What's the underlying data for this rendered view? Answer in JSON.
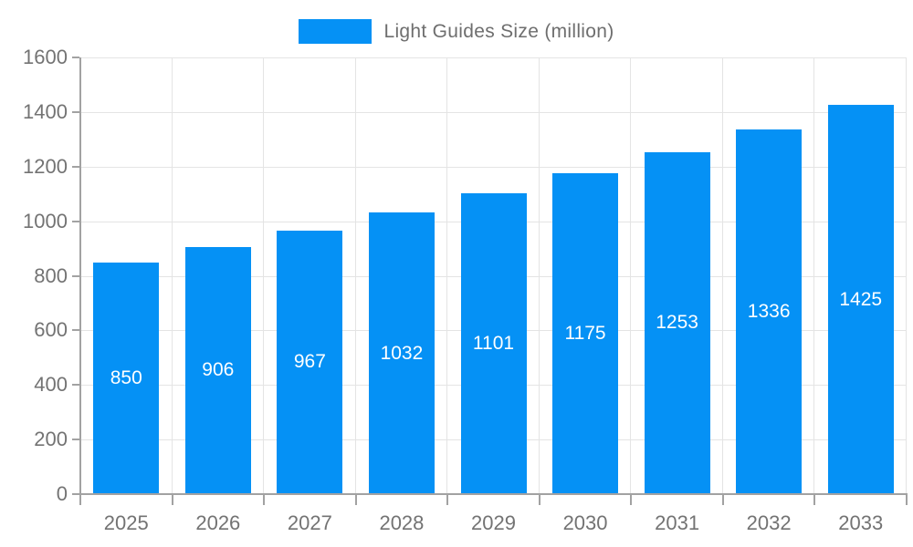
{
  "chart_data": {
    "type": "bar",
    "title": "",
    "series_name": "Light Guides Size (million)",
    "categories": [
      "2025",
      "2026",
      "2027",
      "2028",
      "2029",
      "2030",
      "2031",
      "2032",
      "2033"
    ],
    "values": [
      850,
      906,
      967,
      1032,
      1101,
      1175,
      1253,
      1336,
      1425
    ],
    "value_labels": [
      "850",
      "906",
      "967",
      "1032",
      "1101",
      "1175",
      "1253",
      "1336",
      "1425"
    ],
    "xlabel": "",
    "ylabel": "",
    "ylim": [
      0,
      1600
    ],
    "yticks": [
      0,
      200,
      400,
      600,
      800,
      1000,
      1200,
      1400,
      1600
    ],
    "grid": true,
    "legend_position": "top-center",
    "bar_color": "#0591F5",
    "value_label_color": "#ffffff",
    "axis_line_color": "#a2a2a2",
    "grid_line_color": "#e4e4e4",
    "tick_label_color": "#737373",
    "legend_text_color": "#6e6e6e"
  }
}
